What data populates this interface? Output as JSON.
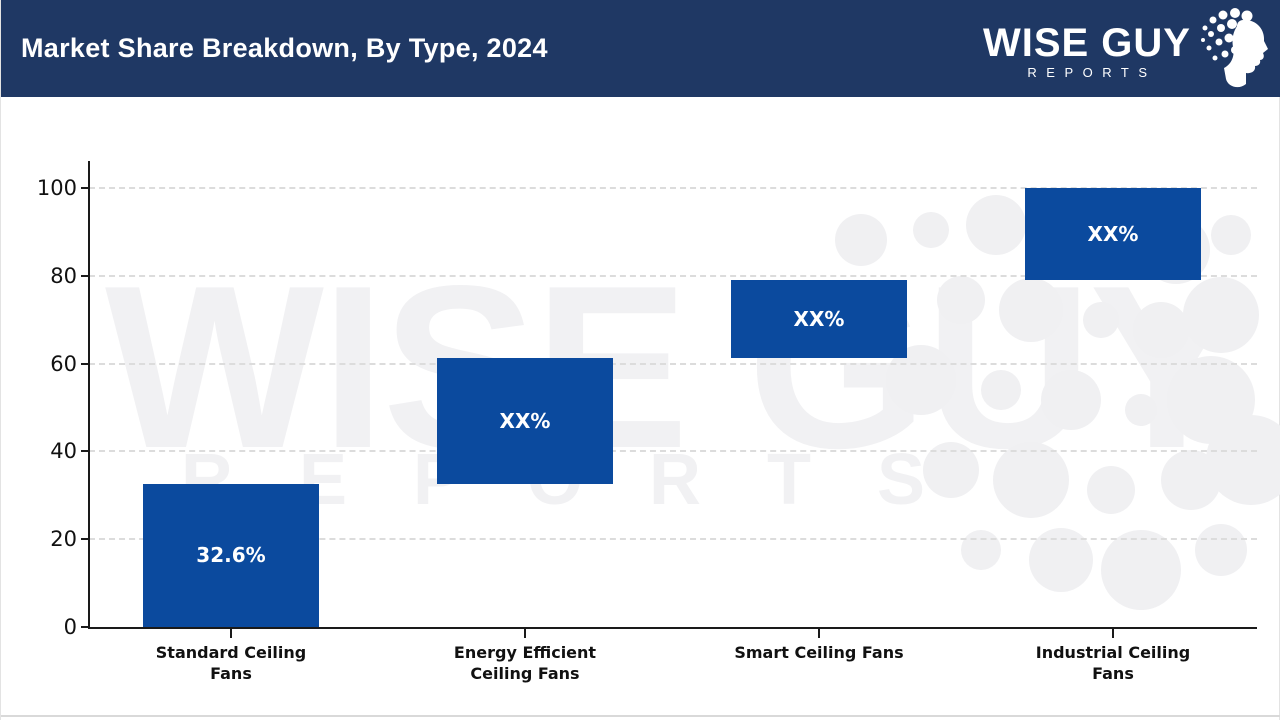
{
  "header": {
    "title": "Market Share Breakdown, By Type, 2024",
    "background_color": "#1f3864",
    "logo": {
      "line1": "WISE GUY",
      "line2": "REPORTS"
    }
  },
  "watermark": {
    "line1": "WISE GUY",
    "line2": "REPORTS"
  },
  "chart_data": {
    "type": "bar",
    "subtype": "waterfall",
    "title": "Market Share Breakdown, By Type, 2024",
    "categories": [
      "Standard Ceiling Fans",
      "Energy Efficient Ceiling Fans",
      "Smart Ceiling Fans",
      "Industrial Ceiling Fans"
    ],
    "segments": [
      {
        "category": "Standard Ceiling Fans",
        "axis_label": "Standard Ceiling\nFans",
        "start": 0,
        "end": 32.6,
        "value_label": "32.6%"
      },
      {
        "category": "Energy Efficient Ceiling Fans",
        "axis_label": "Energy Efficient\nCeiling Fans",
        "start": 32.6,
        "end": 61.2,
        "value_label": "XX%"
      },
      {
        "category": "Smart Ceiling Fans",
        "axis_label": "Smart Ceiling Fans",
        "start": 61.2,
        "end": 79.0,
        "value_label": "XX%"
      },
      {
        "category": "Industrial Ceiling Fans",
        "axis_label": "Industrial Ceiling\nFans",
        "start": 79.0,
        "end": 100,
        "value_label": "XX%"
      }
    ],
    "xlabel": "",
    "ylabel": "",
    "ylim": [
      0,
      105
    ],
    "yticks": [
      0,
      20,
      40,
      60,
      80,
      100
    ],
    "grid": "horizontal-dashed",
    "legend": "none",
    "colors": {
      "bar": "#0b4a9e",
      "bar_label": "#ffffff",
      "axis": "#1a1a1a",
      "gridline": "#dcdcdc",
      "tick_label": "#111111"
    }
  }
}
